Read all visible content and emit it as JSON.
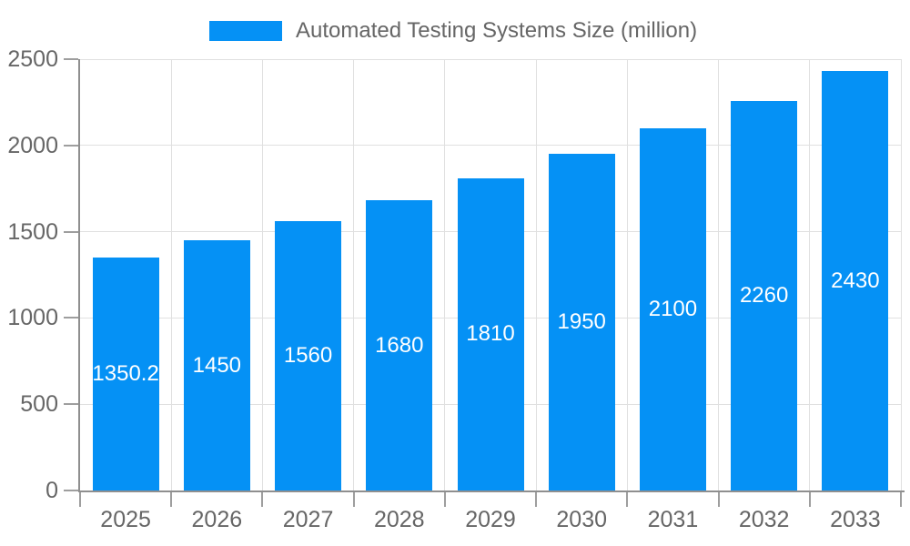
{
  "legend": {
    "label": "Automated Testing Systems Size (million)"
  },
  "colors": {
    "bar": "#0591f5",
    "bar_label": "#ffffff",
    "axis_line": "#8f8f8f",
    "tick": "#9e9e9e",
    "grid": "#e0e0e0",
    "text": "#666666",
    "background": "#ffffff"
  },
  "chart_data": {
    "type": "bar",
    "title": "Automated Testing Systems Size (million)",
    "categories": [
      "2025",
      "2026",
      "2027",
      "2028",
      "2029",
      "2030",
      "2031",
      "2032",
      "2033"
    ],
    "values": [
      1350.2,
      1450,
      1560,
      1680,
      1810,
      1950,
      2100,
      2260,
      2430
    ],
    "value_labels": [
      "1350.2",
      "1450",
      "1560",
      "1680",
      "1810",
      "1950",
      "2100",
      "2260",
      "2430"
    ],
    "xlabel": "",
    "ylabel": "",
    "ylim": [
      0,
      2500
    ],
    "ytick_interval": 500,
    "yticks": [
      0,
      500,
      1000,
      1500,
      2000,
      2500
    ],
    "grid": true,
    "legend_position": "top",
    "bar_label_position": "inside-center",
    "bar_label_color": "#ffffff"
  }
}
